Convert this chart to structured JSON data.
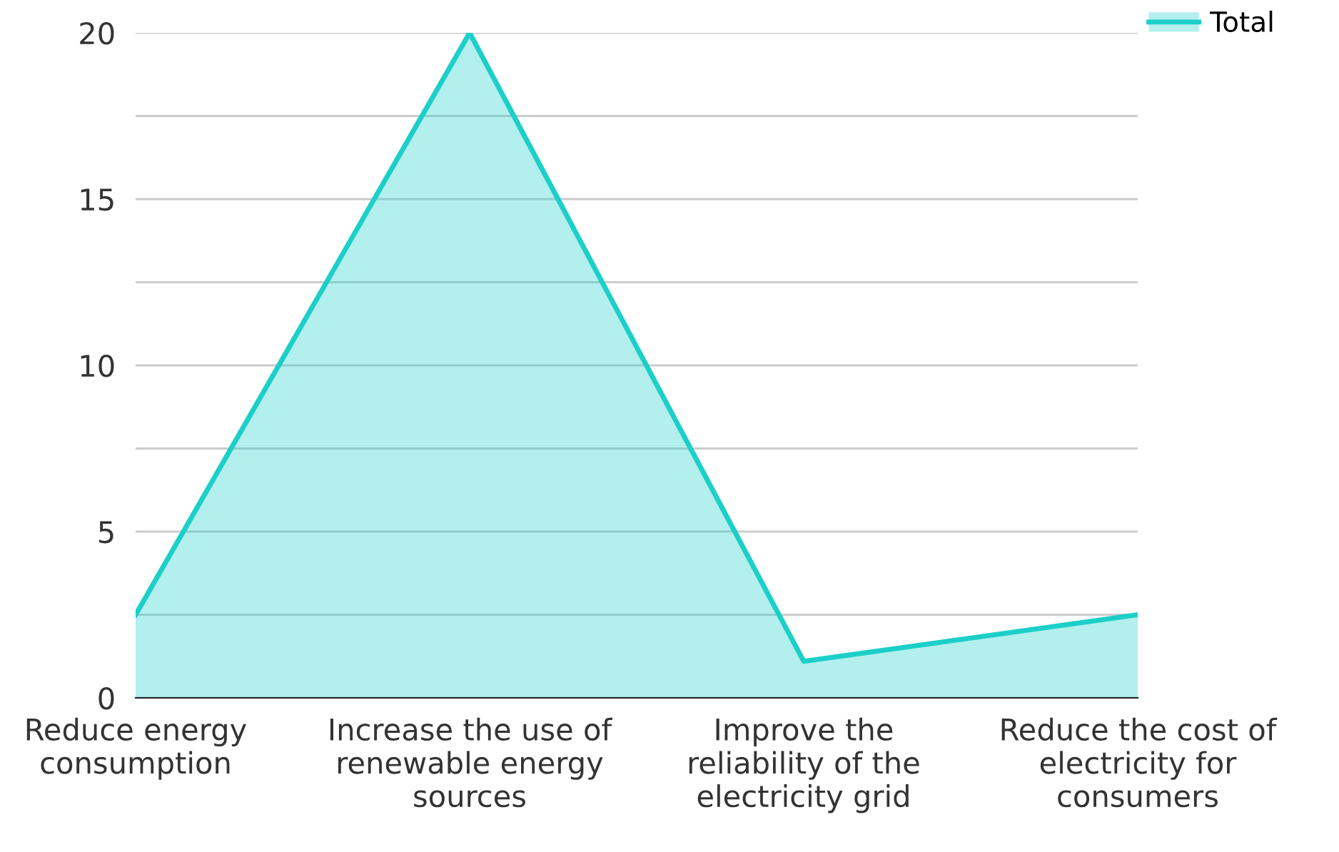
{
  "chart_data": {
    "type": "area",
    "categories": [
      "Reduce energy consumption",
      "Increase the use of renewable energy sources",
      "Improve the reliability of the electricity grid",
      "Reduce the cost of electricity for consumers"
    ],
    "series": [
      {
        "name": "Total",
        "color": "#1ccfc9",
        "values": [
          2.5,
          20,
          1.1,
          2.5
        ]
      }
    ],
    "ylim": [
      0,
      20
    ],
    "yticks": [
      0,
      {
        "value": 2.5,
        "label": null
      },
      5,
      {
        "value": 7.5,
        "label": null
      },
      10,
      {
        "value": 12.5,
        "label": null
      },
      15,
      {
        "value": 17.5,
        "label": null
      },
      20
    ],
    "grid": "y",
    "legend": "top right"
  }
}
